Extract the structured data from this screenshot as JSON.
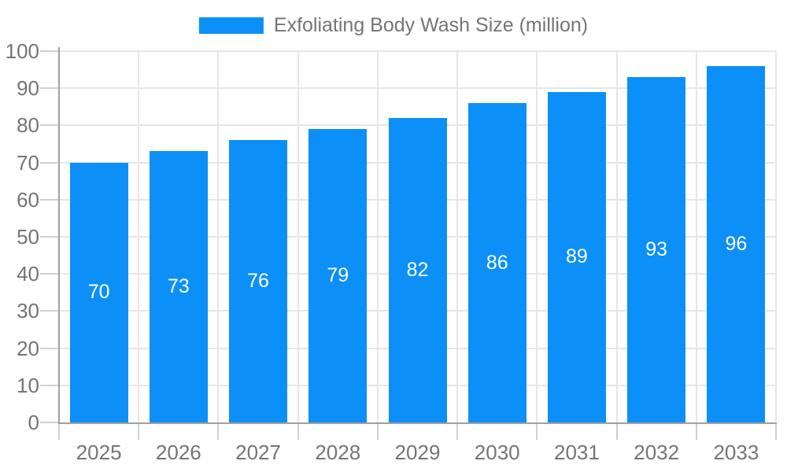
{
  "legend": {
    "label": "Exfoliating Body Wash Size (million)"
  },
  "chart_data": {
    "type": "bar",
    "title": "Exfoliating Body Wash Size (million)",
    "categories": [
      "2025",
      "2026",
      "2027",
      "2028",
      "2029",
      "2030",
      "2031",
      "2032",
      "2033"
    ],
    "values": [
      70,
      73,
      76,
      79,
      82,
      86,
      89,
      93,
      96
    ],
    "xlabel": "",
    "ylabel": "",
    "ylim": [
      0,
      100
    ],
    "ytick_step": 10,
    "y_tick_labels": [
      "0",
      "10",
      "20",
      "30",
      "40",
      "50",
      "60",
      "70",
      "80",
      "90",
      "100"
    ],
    "grid": true,
    "legend_position": "top",
    "colors": {
      "bar": "#0D8FF8",
      "bar_label": "#FFFFFF",
      "axis_text": "#757575",
      "legend_text": "#757575",
      "gridline": "#E6E6E6",
      "axis_line": "#A0A0A0",
      "tick": "#D0D0D0",
      "background": "#FFFFFF"
    }
  }
}
